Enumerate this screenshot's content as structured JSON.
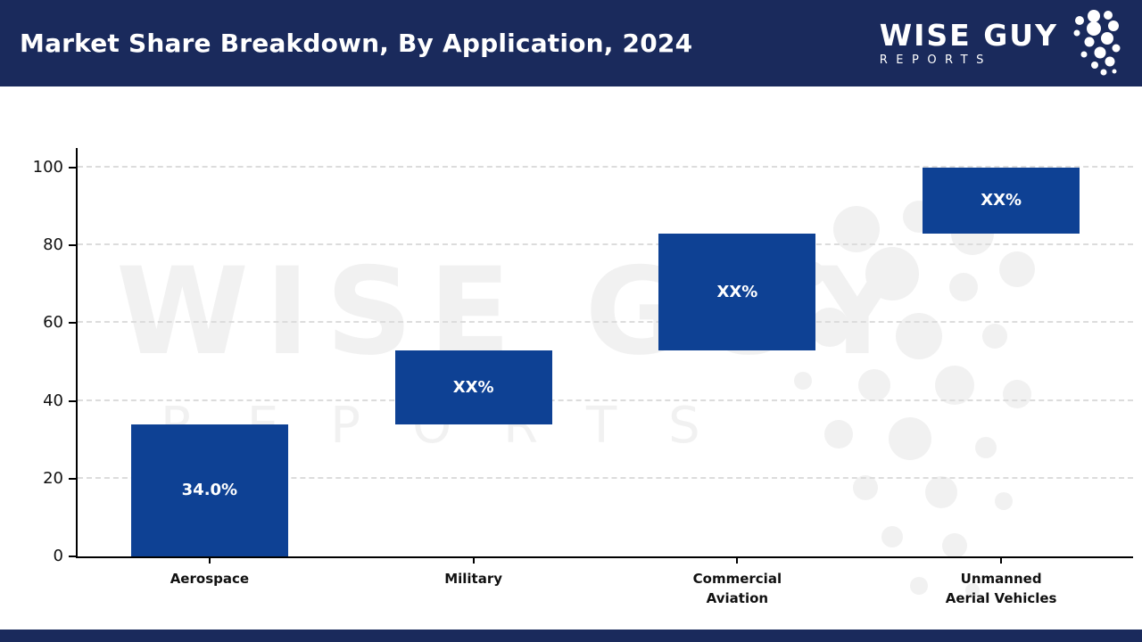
{
  "header": {
    "title": "Market Share Breakdown, By Application, 2024",
    "bg_color": "#1a2a5c",
    "logo": {
      "line1": "WISE GUY",
      "line2": "REPORTS"
    }
  },
  "footer": {
    "bg_color": "#1a2a5c"
  },
  "watermark": {
    "line1": "WISE GUY",
    "line2": "REPORTS"
  },
  "chart_data": {
    "type": "bar",
    "subtype": "waterfall",
    "title": "Market Share Breakdown, By Application, 2024",
    "categories": [
      "Aerospace",
      "Military",
      "Commercial Aviation",
      "Unmanned Aerial Vehicles"
    ],
    "series": [
      {
        "name": "Market Share (%)",
        "starts": [
          0,
          34,
          53,
          83
        ],
        "ends": [
          34,
          53,
          83,
          100
        ]
      }
    ],
    "bar_labels": [
      "34.0%",
      "XX%",
      "XX%",
      "XX%"
    ],
    "bar_color": "#0e4194",
    "yticks": [
      0,
      20,
      40,
      60,
      80,
      100
    ],
    "ylim": [
      0,
      105
    ],
    "xlabel": "",
    "ylabel": "",
    "grid": "dashed horizontal",
    "legend": "none"
  }
}
